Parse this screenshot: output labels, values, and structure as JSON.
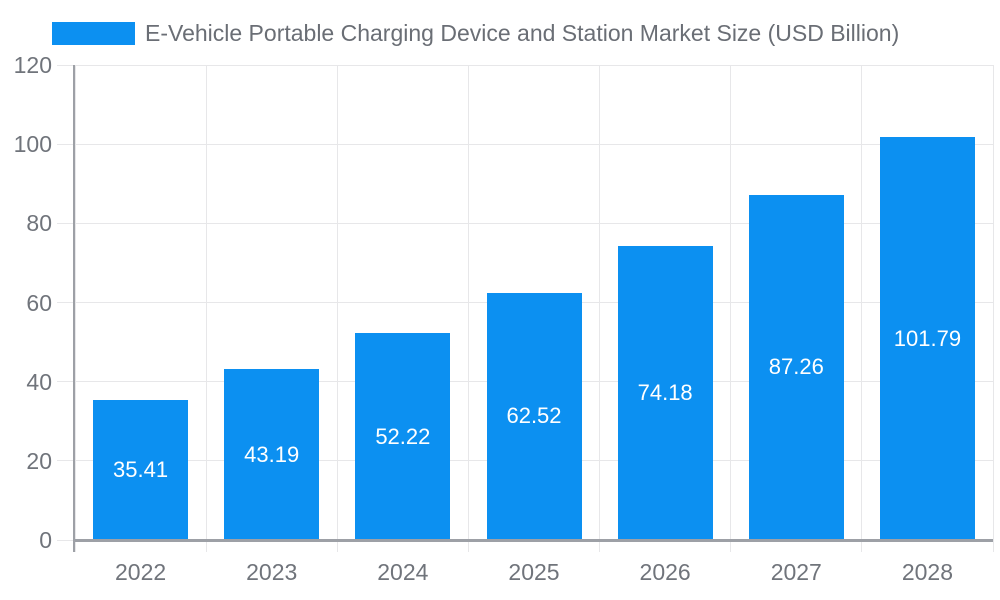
{
  "chart_data": {
    "type": "bar",
    "title": "E-Vehicle Portable Charging Device and Station Market Size (USD Billion)",
    "categories": [
      "2022",
      "2023",
      "2024",
      "2025",
      "2026",
      "2027",
      "2028"
    ],
    "values": [
      35.41,
      43.19,
      52.22,
      62.52,
      74.18,
      87.26,
      101.79
    ],
    "value_labels": [
      "35.41",
      "43.19",
      "52.22",
      "62.52",
      "74.18",
      "87.26",
      "101.79"
    ],
    "xlabel": "",
    "ylabel": "",
    "ylim": [
      0,
      120
    ],
    "yticks": [
      0,
      20,
      40,
      60,
      80,
      100,
      120
    ],
    "grid": true,
    "legend_position": "top",
    "value_label_position": "inside-center",
    "colors": {
      "bar": "#0C90F1",
      "value_label": "#FFFFFF",
      "axis_text": "#70747B",
      "title_text": "#6A6E75",
      "gridline": "#E7E7E9",
      "axis_line": "#9DA0A6",
      "background": "#FFFFFF"
    }
  }
}
